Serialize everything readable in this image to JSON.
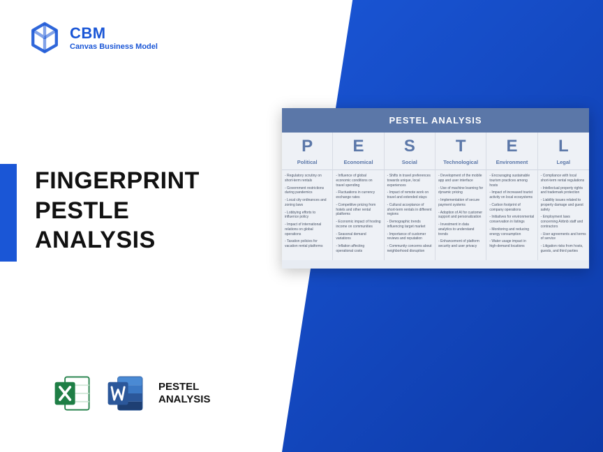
{
  "colors": {
    "brand_blue": "#1a56d6",
    "gradient_start": "#1a56d6",
    "gradient_end": "#0d3aa8",
    "card_bg": "#e8ecf3",
    "card_header_bg": "#5b77a8",
    "pestel_letter": "#5b77a8",
    "cell_bg": "#eef1f6",
    "border": "#d7dbe4",
    "text_dark": "#111111",
    "excel_green": "#1e7e45",
    "word_blue": "#2b579a"
  },
  "typography": {
    "title_fontsize": 34,
    "title_weight": 800,
    "logo_title_fontsize": 22,
    "logo_sub_fontsize": 11,
    "card_header_fontsize": 13,
    "pestel_letter_fontsize": 24,
    "category_fontsize": 7.5,
    "item_fontsize": 5,
    "footer_fontsize": 15
  },
  "logo": {
    "title": "CBM",
    "subtitle": "Canvas Business Model"
  },
  "title": {
    "line1": "FINGERPRINT",
    "line2": "PESTLE",
    "line3": "ANALYSIS"
  },
  "footer": {
    "line1": "PESTEL",
    "line2": "ANALYSIS"
  },
  "pestel": {
    "header": "PESTEL ANALYSIS",
    "columns": [
      {
        "letter": "P",
        "category": "Political",
        "items": [
          "Regulatory scrutiny on short-term rentals",
          "Government restrictions during pandemics",
          "Local city ordinances and zoning laws",
          "Lobbying efforts to influence policy",
          "Impact of international relations on global operations",
          "Taxation policies for vacation rental platforms"
        ]
      },
      {
        "letter": "E",
        "category": "Economical",
        "items": [
          "Influence of global economic conditions on travel spending",
          "Fluctuations in currency exchange rates",
          "Competitive pricing from hotels and other rental platforms",
          "Economic impact of hosting income on communities",
          "Seasonal demand variations",
          "Inflation affecting operational costs"
        ]
      },
      {
        "letter": "S",
        "category": "Social",
        "items": [
          "Shifts in travel preferences towards unique, local experiences",
          "Impact of remote work on travel and extended stays",
          "Cultural acceptance of short-term rentals in different regions",
          "Demographic trends influencing target market",
          "Importance of customer reviews and reputation",
          "Community concerns about neighborhood disruption"
        ]
      },
      {
        "letter": "T",
        "category": "Technological",
        "items": [
          "Development of the mobile app and user interface",
          "Use of machine learning for dynamic pricing",
          "Implementation of secure payment systems",
          "Adoption of AI for customer support and personalization",
          "Investment in data analytics to understand trends",
          "Enhancement of platform security and user privacy"
        ]
      },
      {
        "letter": "E",
        "category": "Environment",
        "items": [
          "Encouraging sustainable tourism practices among hosts",
          "Impact of increased tourist activity on local ecosystems",
          "Carbon footprint of company operations",
          "Initiatives for environmental conservation in listings",
          "Monitoring and reducing energy consumption",
          "Water usage impact in high-demand locations"
        ]
      },
      {
        "letter": "L",
        "category": "Legal",
        "items": [
          "Compliance with local short-term rental regulations",
          "Intellectual property rights and trademark protection",
          "Liability issues related to property damage and guest safety",
          "Employment laws concerning Airbnb staff and contractors",
          "User agreements and terms of service",
          "Litigation risks from hosts, guests, and third parties"
        ]
      }
    ]
  }
}
